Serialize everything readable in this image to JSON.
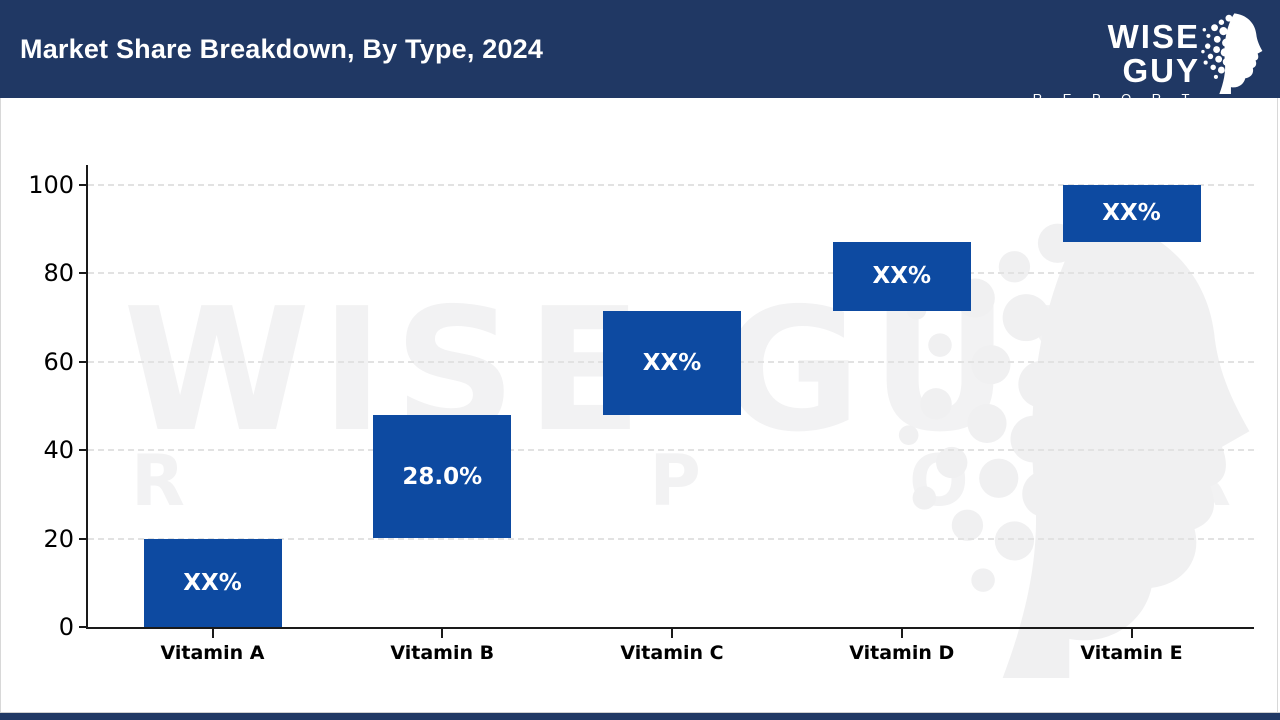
{
  "header": {
    "title": "Market Share Breakdown, By Type, 2024",
    "logo": {
      "line1": "WISE GUY",
      "line2": "R E P O R T S"
    }
  },
  "watermark": {
    "line1": "WISE GUY",
    "line2": "R E P O R T S"
  },
  "chart_data": {
    "type": "bar",
    "subtype": "waterfall-floating",
    "title": "Market Share Breakdown, By Type, 2024",
    "categories": [
      "Vitamin A",
      "Vitamin B",
      "Vitamin C",
      "Vitamin D",
      "Vitamin E"
    ],
    "segments": [
      {
        "category": "Vitamin A",
        "start": 0,
        "end": 20,
        "label": "XX%"
      },
      {
        "category": "Vitamin B",
        "start": 20,
        "end": 48,
        "label": "28.0%"
      },
      {
        "category": "Vitamin C",
        "start": 48,
        "end": 71.5,
        "label": "XX%"
      },
      {
        "category": "Vitamin D",
        "start": 71.5,
        "end": 87,
        "label": "XX%"
      },
      {
        "category": "Vitamin E",
        "start": 87,
        "end": 100,
        "label": "XX%"
      }
    ],
    "yticks": [
      0,
      20,
      40,
      60,
      80,
      100
    ],
    "ylim": [
      0,
      104.5
    ],
    "xlabel": "",
    "ylabel": "",
    "grid": "horizontal-dashed",
    "legend": "none",
    "bar_color": "#0d4aa1",
    "bar_label_color": "#ffffff"
  },
  "colors": {
    "header_bg": "#203864",
    "footer_bg": "#203864",
    "bar": "#0d4aa1",
    "grid": "#e2e2e2",
    "axis": "#1a1a1a",
    "watermark": "#f2f2f3"
  }
}
